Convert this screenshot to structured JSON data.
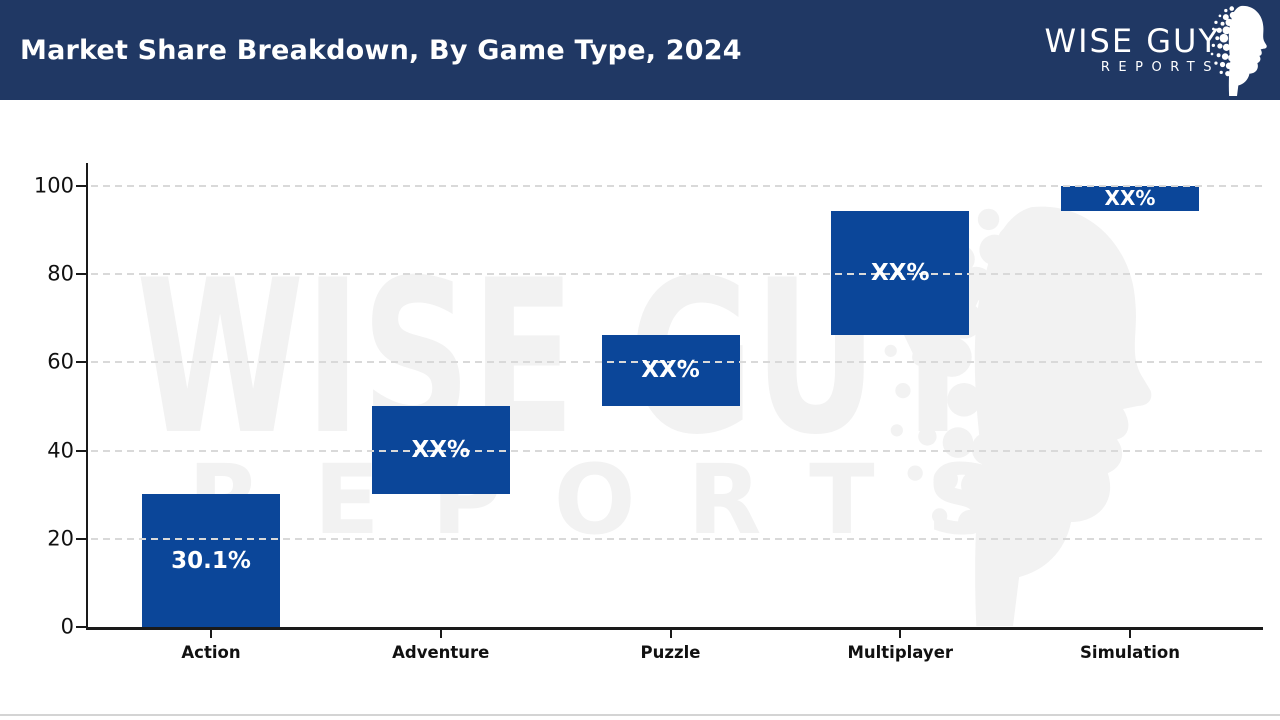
{
  "header": {
    "title": "Market Share Breakdown, By Game Type, 2024",
    "logo": {
      "name": "WISE GUY",
      "subtitle": "REPORTS"
    }
  },
  "watermark": {
    "line1": "WISE GUY",
    "line2": "REPORTS"
  },
  "chart_data": {
    "type": "bar",
    "subtype": "waterfall",
    "title": "Market Share Breakdown, By Game Type, 2024",
    "categories": [
      "Action",
      "Adventure",
      "Puzzle",
      "Multiplayer",
      "Simulation"
    ],
    "bars": [
      {
        "category": "Action",
        "start": 0,
        "end": 30.1,
        "label": "30.1%"
      },
      {
        "category": "Adventure",
        "start": 30.1,
        "end": 50.2,
        "label": "XX%"
      },
      {
        "category": "Puzzle",
        "start": 50.2,
        "end": 66.3,
        "label": "XX%"
      },
      {
        "category": "Multiplayer",
        "start": 66.3,
        "end": 94.4,
        "label": "XX%"
      },
      {
        "category": "Simulation",
        "start": 94.4,
        "end": 100,
        "label": "XX%"
      }
    ],
    "xlabel": "",
    "ylabel": "",
    "ylim": [
      0,
      100
    ],
    "yticks": [
      0,
      20,
      40,
      60,
      80,
      100
    ],
    "grid": "horizontal-dashed-above-bars",
    "legend": "none",
    "bar_width_fraction": 0.6
  },
  "colors": {
    "header_bg": "#203864",
    "title_text": "#ffffff",
    "bar_fill": "#0b4699",
    "bar_label": "#ffffff",
    "grid_line": "#d9d9d9",
    "axis_line": "#1a1a1a",
    "tick_text": "#111111",
    "watermark": "#f2f2f2",
    "bottom_rule": "#d4d4d4"
  }
}
